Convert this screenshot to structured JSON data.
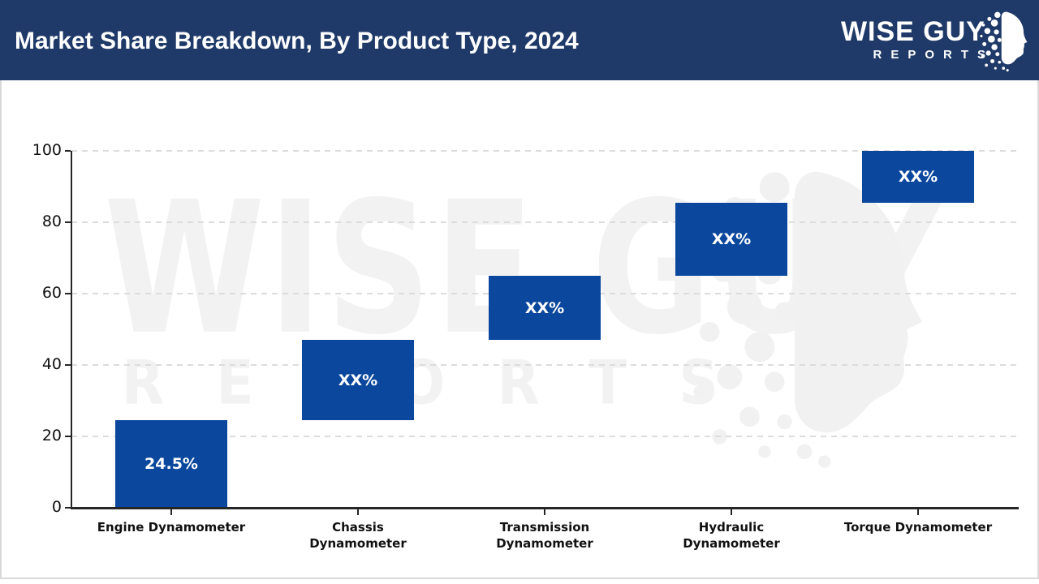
{
  "header": {
    "title": "Market Share Breakdown, By Product Type, 2024",
    "logo_line1": "WISE GUY",
    "logo_line2": "REPORTS",
    "bg_color": "#1F3A68"
  },
  "watermark": {
    "line1": "WISE GUY",
    "line2": "REPORTS"
  },
  "chart_data": {
    "type": "bar",
    "subtype": "floating-waterfall",
    "title": "Market Share Breakdown, By Product Type, 2024",
    "xlabel": "",
    "ylabel": "",
    "ylim": [
      0,
      100
    ],
    "yticks": [
      0,
      20,
      40,
      60,
      80,
      100
    ],
    "grid": {
      "axis": "y",
      "style": "dashed",
      "color": "#dcdcdc"
    },
    "legend": "none",
    "bar_color": "#0B479D",
    "bar_label_color": "#ffffff",
    "categories": [
      "Engine Dynamometer",
      "Chassis Dynamometer",
      "Transmission Dynamometer",
      "Hydraulic Dynamometer",
      "Torque Dynamometer"
    ],
    "category_display": [
      "Engine Dynamometer",
      "Chassis\nDynamometer",
      "Transmission\nDynamometer",
      "Hydraulic\nDynamometer",
      "Torque Dynamometer"
    ],
    "segments": [
      {
        "category": "Engine Dynamometer",
        "start": 0,
        "end": 24.5,
        "label": "24.5%"
      },
      {
        "category": "Chassis Dynamometer",
        "start": 24.5,
        "end": 47,
        "label": "XX%"
      },
      {
        "category": "Transmission Dynamometer",
        "start": 47,
        "end": 65,
        "label": "XX%"
      },
      {
        "category": "Hydraulic Dynamometer",
        "start": 65,
        "end": 85.5,
        "label": "XX%"
      },
      {
        "category": "Torque Dynamometer",
        "start": 85.5,
        "end": 100,
        "label": "XX%"
      }
    ]
  }
}
